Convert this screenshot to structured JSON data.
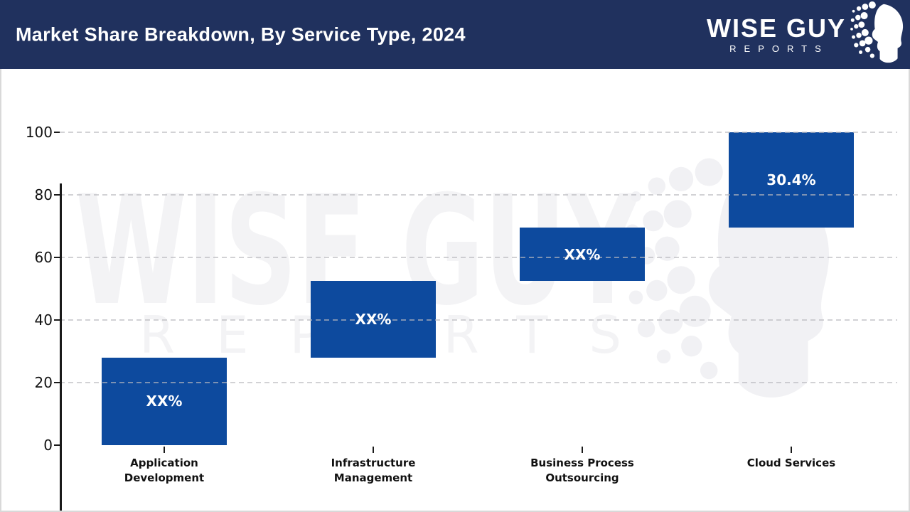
{
  "header": {
    "title": "Market Share Breakdown, By Service Type, 2024",
    "logo": {
      "primary": "WISE GUY",
      "secondary": "REPORTS"
    }
  },
  "watermark": {
    "primary": "WISE GUY",
    "secondary": "REPORTS"
  },
  "colors": {
    "header_bg": "#20315e",
    "bar_fill": "#0d4a9e",
    "axis": "#1a1a1a",
    "gridline": "#d9d9d9",
    "bar_label_text": "#ffffff"
  },
  "chart_data": {
    "type": "bar",
    "subtype": "waterfall",
    "title": "Market Share Breakdown, By Service Type, 2024",
    "categories": [
      "Application Development",
      "Infrastructure Management",
      "Business Process Outsourcing",
      "Cloud Services"
    ],
    "segments": [
      {
        "category": "Application Development",
        "start": 0,
        "end": 28.0,
        "label": "XX%"
      },
      {
        "category": "Infrastructure Management",
        "start": 28.0,
        "end": 52.4,
        "label": "XX%"
      },
      {
        "category": "Business Process Outsourcing",
        "start": 52.4,
        "end": 69.6,
        "label": "XX%"
      },
      {
        "category": "Cloud Services",
        "start": 69.6,
        "end": 100.0,
        "label": "30.4%",
        "value": 30.4
      }
    ],
    "xlabel": "",
    "ylabel": "",
    "ylim": [
      0,
      100
    ],
    "yticks": [
      0,
      20,
      40,
      60,
      80,
      100
    ],
    "grid": "horizontal-dashed",
    "legend": "none"
  }
}
